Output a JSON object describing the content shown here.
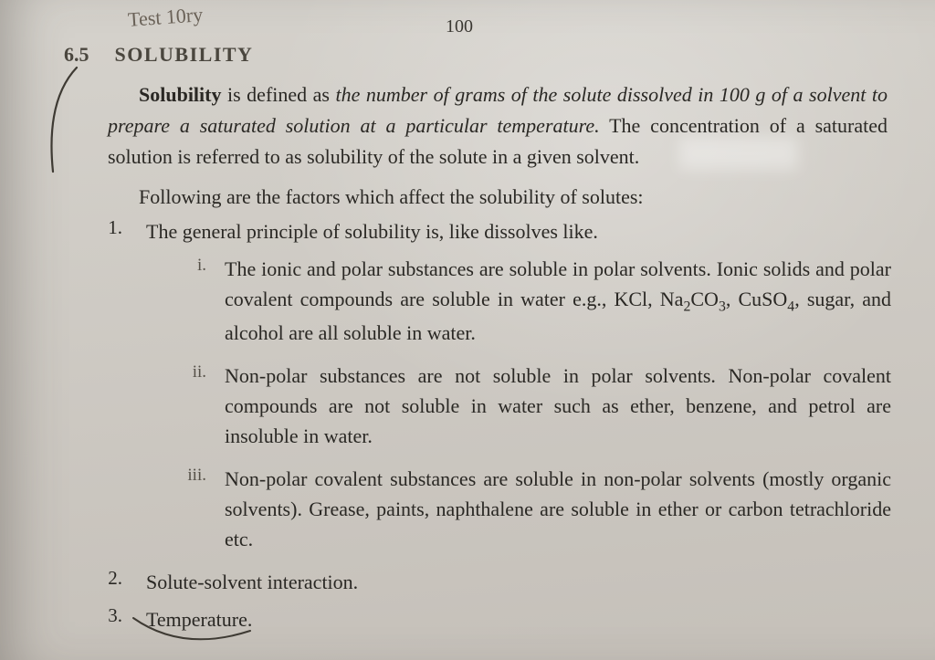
{
  "page_number": "100",
  "handwritten_annotation": "Test 10ry",
  "section": {
    "number": "6.5",
    "title": "SOLUBILITY"
  },
  "definition": {
    "term": "Solubility",
    "text_prefix": " is defined as ",
    "italic_part": "the number of grams of the solute dissolved in 100 g of a solvent to prepare a saturated solution at a particular temperature.",
    "text_suffix": " The concentration of a saturated solution is referred to as solubility of the solute in a given solvent."
  },
  "factors_intro": "Following are the factors which affect the solubility of solutes:",
  "factors": [
    {
      "marker": "1.",
      "text": "The general principle of solubility is, like dissolves like."
    },
    {
      "marker": "2.",
      "text": "Solute-solvent interaction."
    },
    {
      "marker": "3.",
      "text": "Temperature."
    }
  ],
  "subpoints": [
    {
      "marker": "i.",
      "segments": [
        "The ionic and polar substances are soluble in polar solvents. Ionic solids and polar covalent compounds are soluble in water e.g., KCl, Na",
        {
          "sub": "2"
        },
        "CO",
        {
          "sub": "3"
        },
        ", CuSO",
        {
          "sub": "4"
        },
        ", sugar, and alcohol are all soluble in water."
      ]
    },
    {
      "marker": "ii.",
      "segments": [
        "Non-polar substances are not soluble in polar solvents. Non-polar covalent compounds are not soluble in water such as ether, benzene, and petrol are insoluble in water."
      ]
    },
    {
      "marker": "iii.",
      "segments": [
        "Non-polar covalent substances are soluble in non-polar solvents (mostly organic solvents). Grease, paints, naphthalene are soluble in ether or carbon tetrachloride etc."
      ]
    }
  ]
}
